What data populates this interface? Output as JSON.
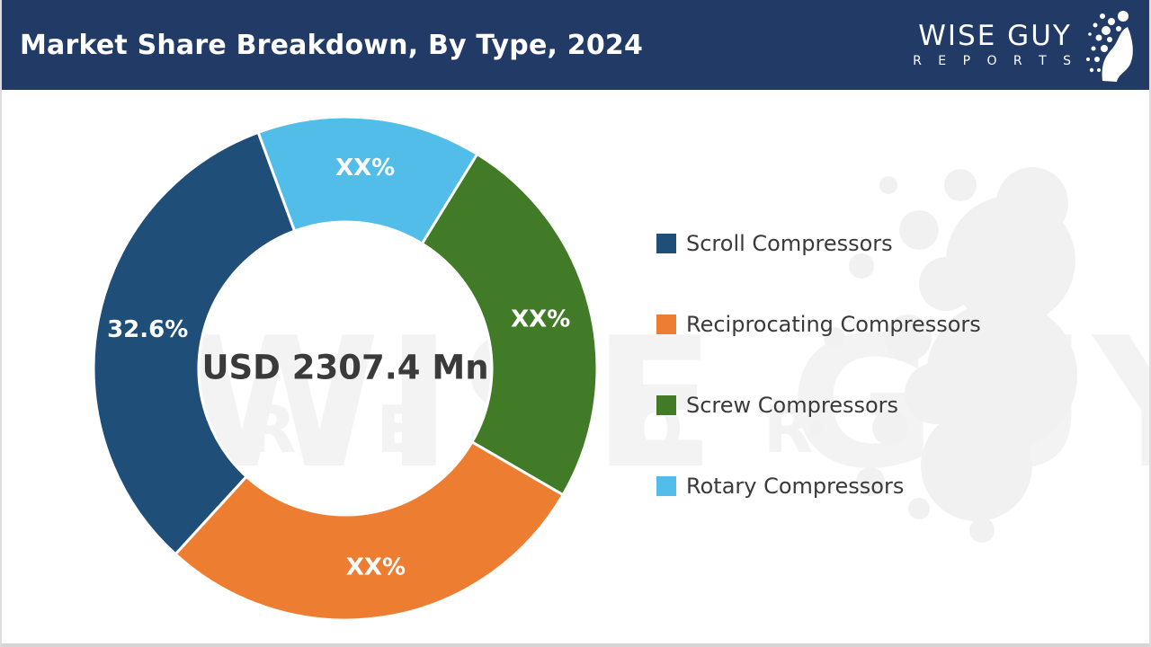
{
  "header": {
    "title": "Market Share Breakdown, By Type, 2024",
    "logo": {
      "name": "WISE GUY",
      "subtitle": "R E P O R T S"
    }
  },
  "watermark": {
    "line1": "WISE GUY",
    "line2": "R E P O R T S"
  },
  "chart_data": {
    "type": "donut",
    "title": "Market Share Breakdown, By Type, 2024",
    "center_label": "USD 2307.4 Mn",
    "total_value": "USD 2307.4 Mn",
    "start_angle_deg": 227.6,
    "direction": "clockwise",
    "legend_position": "right",
    "segments": [
      {
        "label": "Scroll Compressors",
        "display": "32.6%",
        "pct": 32.6,
        "color": "#1F4E78"
      },
      {
        "label": "Rotary Compressors",
        "display": "XX%",
        "pct": 14.4,
        "color": "#52BDE8"
      },
      {
        "label": "Screw Compressors",
        "display": "XX%",
        "pct": 24.6,
        "color": "#417B27"
      },
      {
        "label": "Reciprocating Compressors",
        "display": "XX%",
        "pct": 28.4,
        "color": "#ED7D31"
      }
    ],
    "legend_order": [
      0,
      3,
      2,
      1
    ]
  }
}
